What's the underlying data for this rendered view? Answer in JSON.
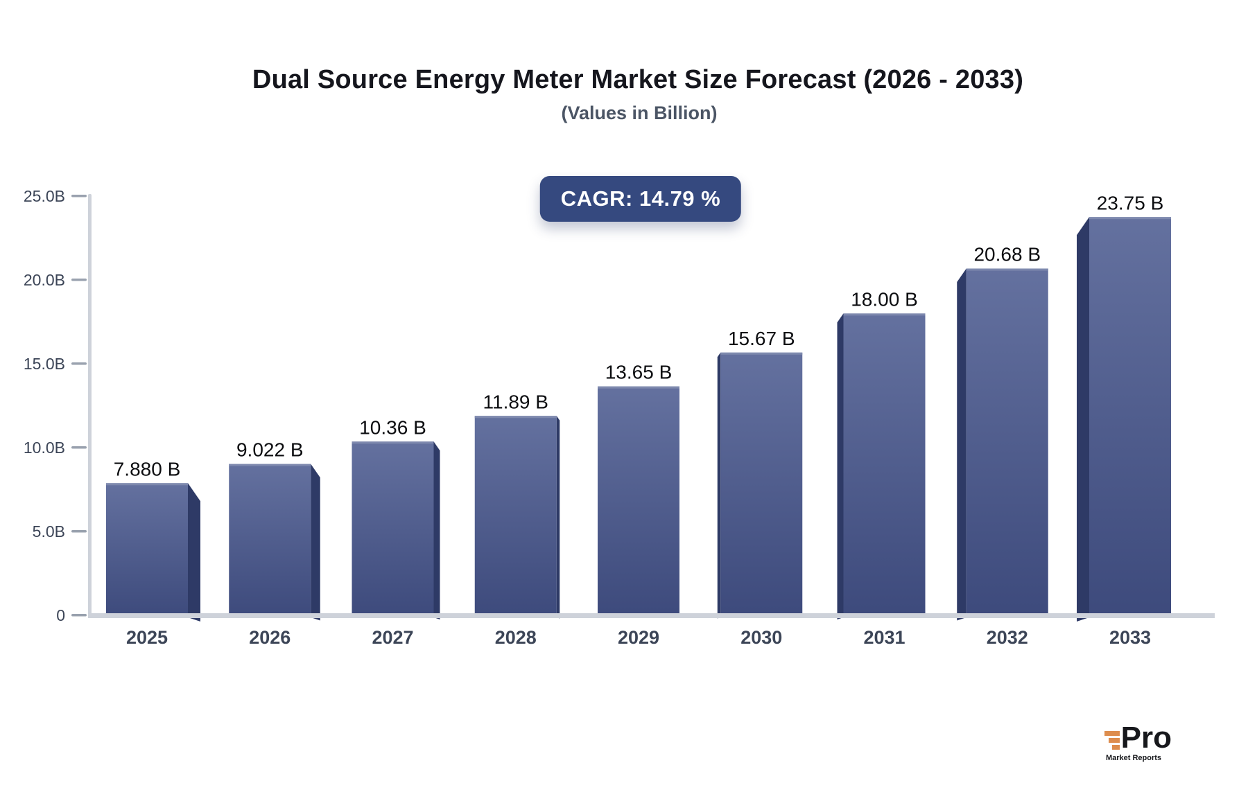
{
  "badge": {
    "label": "CAGR: 14.79 %"
  },
  "logo": {
    "name": "Pro",
    "tagline": "Market Reports"
  },
  "colors": {
    "bar_front_top": "#64719f",
    "bar_front_bottom": "#3d4a7c",
    "bar_side": "#2e3a66",
    "bar_top_highlight": "#7e89ae",
    "badge_bg": "#35497f",
    "axis_line": "#ced2da",
    "tick_dash": "#99a1ae",
    "tick_label": "#3c4557",
    "year_label": "#3c4557",
    "value_label": "#0c0d10",
    "title_color": "#15161d",
    "subtitle_color": "#4b5565",
    "logo_accent": "#dd8d4e",
    "logo_text": "#17181c"
  },
  "chart_data": {
    "type": "bar",
    "title": "Dual Source Energy Meter Market Size Forecast (2026 - 2033)",
    "subtitle": "(Values in Billion)",
    "cagr_label": "CAGR: 14.79 %",
    "categories": [
      "2025",
      "2026",
      "2027",
      "2028",
      "2029",
      "2030",
      "2031",
      "2032",
      "2033"
    ],
    "values": [
      7.88,
      9.022,
      10.36,
      11.89,
      13.65,
      15.67,
      18.0,
      20.68,
      23.75
    ],
    "value_labels": [
      "7.880 B",
      "9.022 B",
      "10.36 B",
      "11.89 B",
      "13.65 B",
      "15.67 B",
      "18.00 B",
      "20.68 B",
      "23.75 B"
    ],
    "ylim": [
      0,
      25
    ],
    "yticks": [
      0,
      5,
      10,
      15,
      20,
      25
    ],
    "ytick_labels": [
      "0",
      "5.0B",
      "10.0B",
      "15.0B",
      "20.0B",
      "25.0B"
    ],
    "xlabel": "",
    "ylabel": "",
    "grid": false,
    "legend": null,
    "bar_style": "3d-perspective"
  }
}
